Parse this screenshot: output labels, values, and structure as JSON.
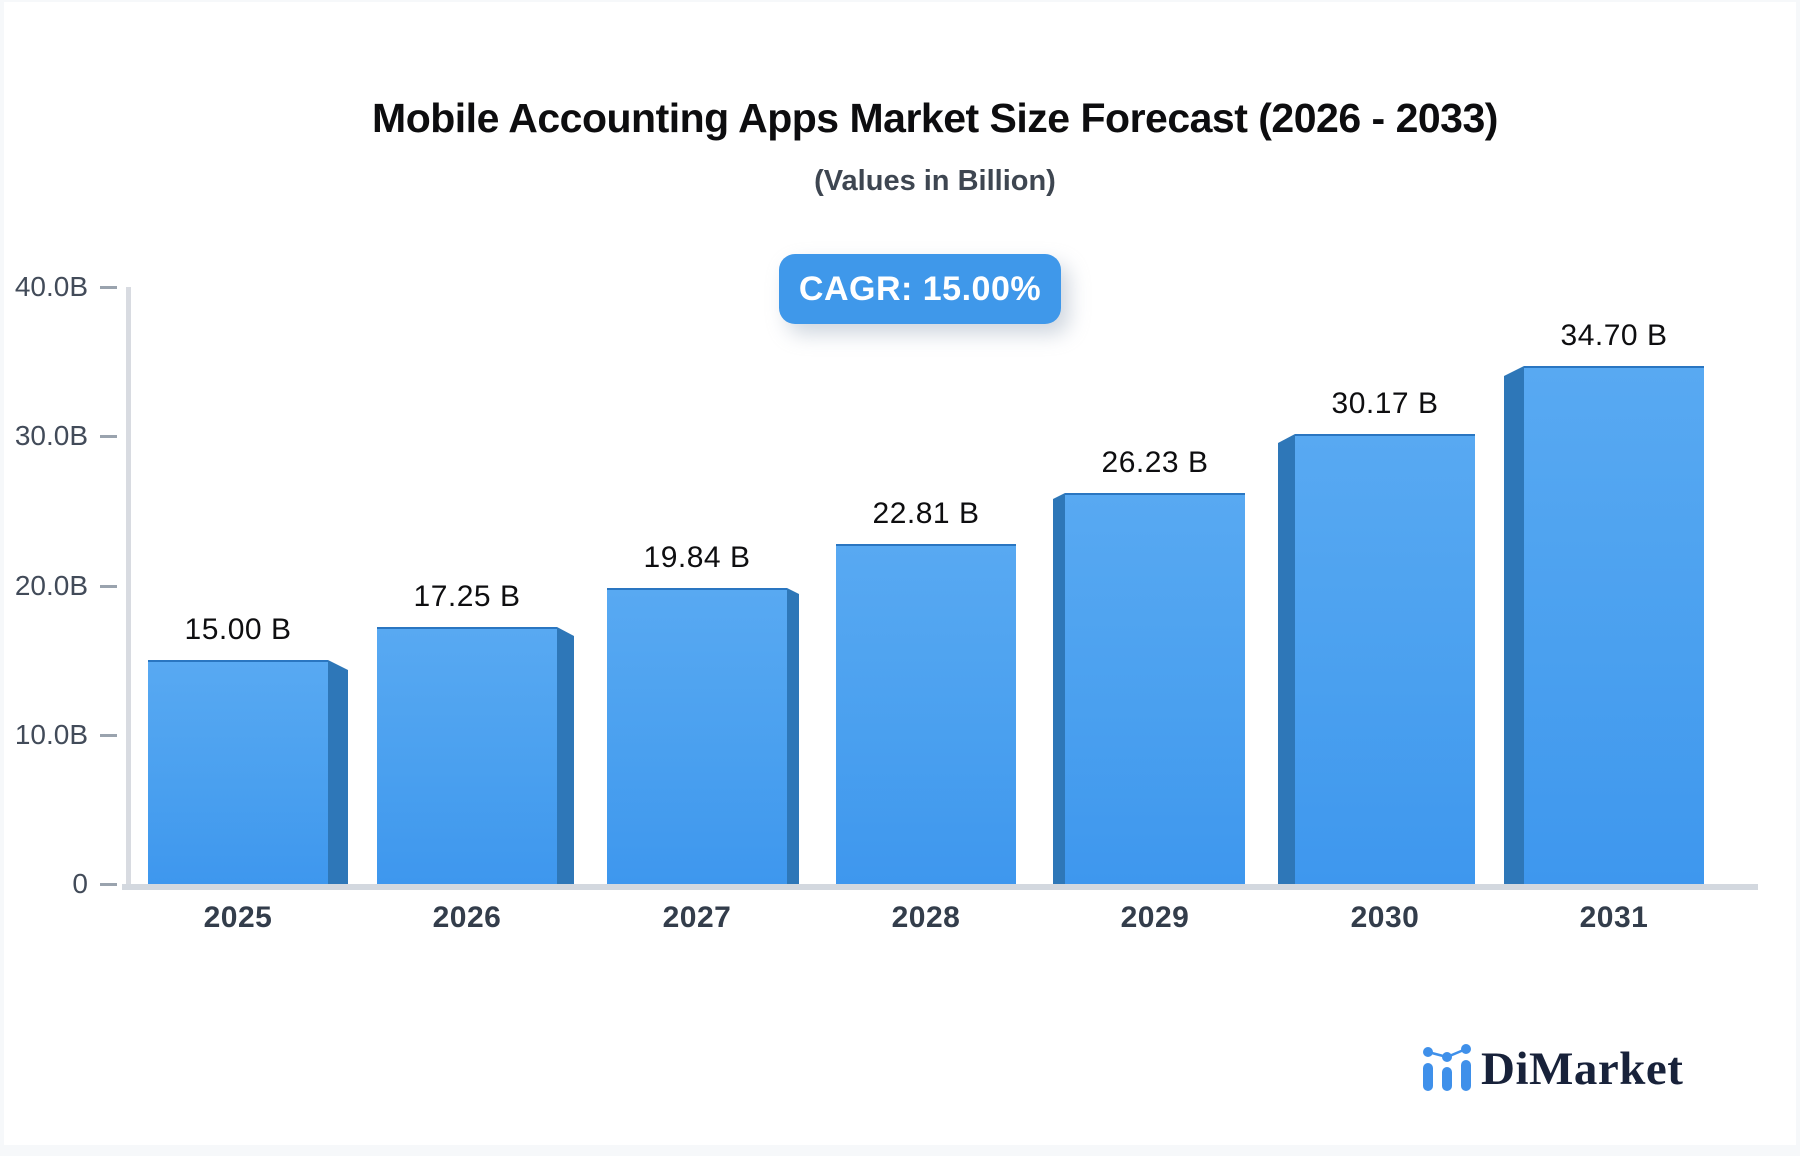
{
  "header": {
    "title": "Mobile Accounting Apps Market Size Forecast (2026 - 2033)",
    "subtitle": "(Values in Billion)"
  },
  "badge": {
    "label": "CAGR: 15.00%",
    "bg_color": "#3f98ea",
    "text_color": "#ffffff"
  },
  "chart_data": {
    "type": "bar",
    "title": "Mobile Accounting Apps Market Size Forecast (2026 - 2033)",
    "subtitle": "(Values in Billion)",
    "categories": [
      "2025",
      "2026",
      "2027",
      "2028",
      "2029",
      "2030",
      "2031"
    ],
    "values": [
      15.0,
      17.25,
      19.84,
      22.81,
      26.23,
      30.17,
      34.7
    ],
    "bar_labels": [
      "15.00 B",
      "17.25 B",
      "19.84 B",
      "22.81 B",
      "26.23 B",
      "30.17 B",
      "34.70 B"
    ],
    "ytick_values": [
      40,
      30,
      20,
      10,
      0
    ],
    "ytick_labels": [
      "40.0B",
      "30.0B",
      "20.0B",
      "10.0B",
      "0"
    ],
    "ylim": [
      0,
      40
    ],
    "xlabel": "",
    "ylabel": "",
    "grid": false,
    "legend": false,
    "style": "3d-extruded-bars",
    "colors": {
      "bar_top": "#58a9f2",
      "bar_mid": "#4aa0ef",
      "bar_bottom": "#3e97ee",
      "bar_side": "#2e77b8",
      "bar_edge": "#2a76c1",
      "axis": "#d5d9e0",
      "tick": "#9aa3ae",
      "tick_label": "#424b59"
    }
  },
  "logo": {
    "icon": "bar-chart-trend-icon",
    "text": "DiMarket",
    "icon_color": "#3f90ea",
    "text_color": "#18223a"
  }
}
